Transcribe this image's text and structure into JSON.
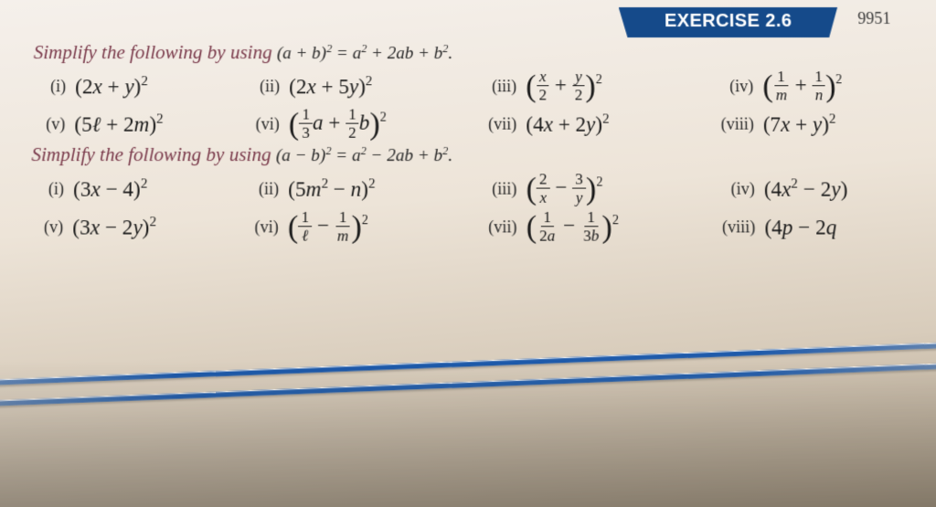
{
  "header": {
    "badge_prefix": "EXERCISE",
    "badge_number": "2.6",
    "code": "9951"
  },
  "sections": [
    {
      "instruction_prefix": "Simplify the following by using ",
      "formula_html": "(<i>a</i> + <i>b</i>)<sup>2</sup> = <i>a</i><sup>2</sup> + 2<i>ab</i> + <i>b</i><sup>2</sup>.",
      "items": [
        {
          "num": "(i)",
          "html": "(2<i>x</i> + <i>y</i>)<sup>2</sup>"
        },
        {
          "num": "(ii)",
          "html": "(2<i>x</i> + 5<i>y</i>)<sup>2</sup>"
        },
        {
          "num": "(iii)",
          "html": "<span class='big-paren'>(</span><span class='frac'><span class='n'><i>x</i></span><span class='d'>2</span></span> + <span class='frac'><span class='n'><i>y</i></span><span class='d'>2</span></span><span class='big-paren'>)</span><span class='sup2'>2</span>"
        },
        {
          "num": "(iv)",
          "html": "<span class='big-paren'>(</span><span class='frac'><span class='n'>1</span><span class='d'><i>m</i></span></span> + <span class='frac'><span class='n'>1</span><span class='d'><i>n</i></span></span><span class='big-paren'>)</span><span class='sup2'>2</span>"
        },
        {
          "num": "(v)",
          "html": "(5<i>ℓ</i> + 2<i>m</i>)<sup>2</sup>"
        },
        {
          "num": "(vi)",
          "html": "<span class='big-paren'>(</span><span class='frac'><span class='n'>1</span><span class='d'>3</span></span><i>a</i> + <span class='frac'><span class='n'>1</span><span class='d'>2</span></span><i>b</i><span class='big-paren'>)</span><span class='sup2'>2</span>"
        },
        {
          "num": "(vii)",
          "html": "(4<i>x</i> + 2<i>y</i>)<sup>2</sup>"
        },
        {
          "num": "(viii)",
          "html": "(7<i>x</i> + <i>y</i>)<sup>2</sup>"
        }
      ]
    },
    {
      "instruction_prefix": "Simplify the following by using ",
      "formula_html": "(<i>a</i> − <i>b</i>)<sup>2</sup> = <i>a</i><sup>2</sup> − 2<i>ab</i> + <i>b</i><sup>2</sup>.",
      "items": [
        {
          "num": "(i)",
          "html": "(3<i>x</i> − 4)<sup>2</sup>"
        },
        {
          "num": "(ii)",
          "html": "(5<i>m</i><sup>2</sup> − <i>n</i>)<sup>2</sup>"
        },
        {
          "num": "(iii)",
          "html": "<span class='big-paren'>(</span><span class='frac'><span class='n'>2</span><span class='d'><i>x</i></span></span> − <span class='frac'><span class='n'>3</span><span class='d'><i>y</i></span></span><span class='big-paren'>)</span><span class='sup2'>2</span>"
        },
        {
          "num": "(iv)",
          "html": "(4<i>x</i><sup>2</sup> − 2<i>y</i>)"
        },
        {
          "num": "(v)",
          "html": "(3<i>x</i> − 2<i>y</i>)<sup>2</sup>"
        },
        {
          "num": "(vi)",
          "html": "<span class='big-paren'>(</span><span class='frac'><span class='n'>1</span><span class='d'><i>ℓ</i></span></span> − <span class='frac'><span class='n'>1</span><span class='d'><i>m</i></span></span><span class='big-paren'>)</span><span class='sup2'>2</span>"
        },
        {
          "num": "(vii)",
          "html": "<span class='big-paren'>(</span><span class='frac'><span class='n'>1</span><span class='d'>2<i>a</i></span></span> − <span class='frac'><span class='n'>1</span><span class='d'>3<i>b</i></span></span><span class='big-paren'>)</span><span class='sup2'>2</span>"
        },
        {
          "num": "(viii)",
          "html": "(4<i>p</i> − 2<i>q</i>"
        }
      ]
    }
  ],
  "colors": {
    "badge_bg": "#154a8a",
    "instruction_color": "#7a3a4b",
    "rule_color": "#1e5aaa"
  }
}
